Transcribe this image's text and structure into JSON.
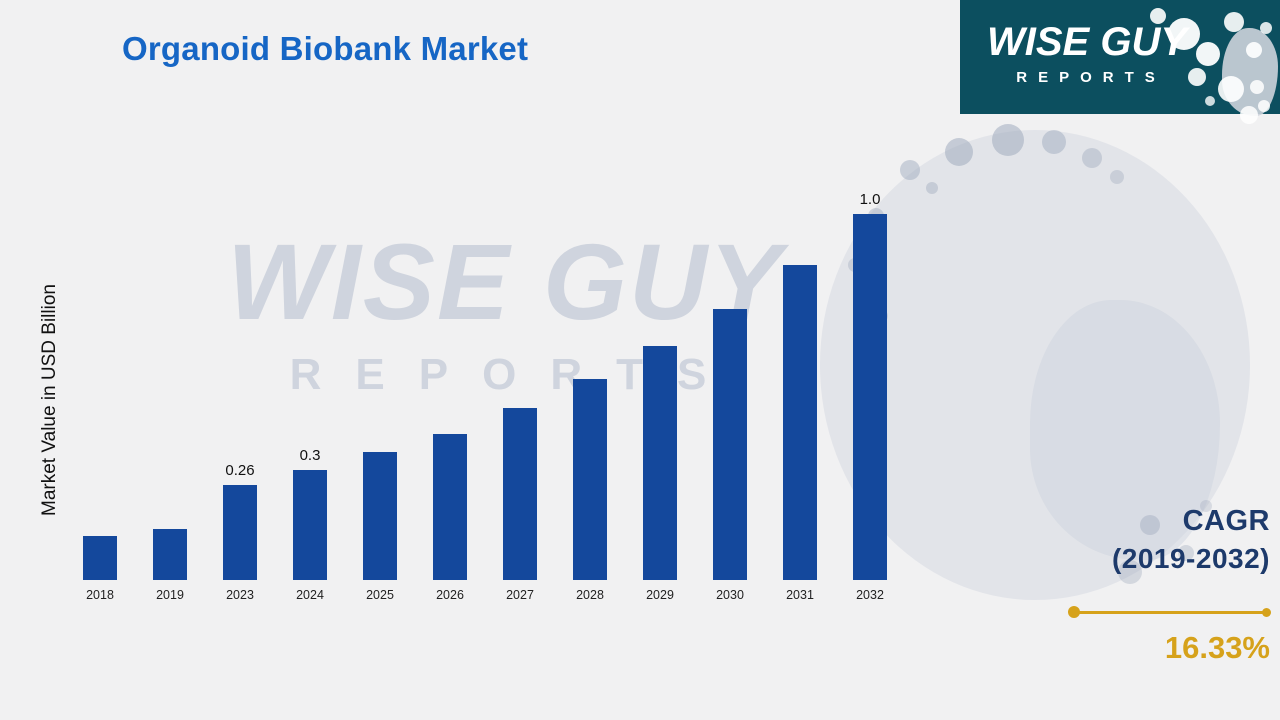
{
  "title": "Organoid Biobank Market",
  "y_axis_label": "Market Value in USD Billion",
  "logo": {
    "line1": "WISE GUY",
    "line2": "REPORTS"
  },
  "watermark": {
    "line1": "WISE GUY",
    "line2": "REPORTS"
  },
  "cagr": {
    "label": "CAGR",
    "range": "(2019-2032)",
    "value": "16.33%"
  },
  "colors": {
    "bar": "#14489c",
    "title": "#1666c5",
    "logo_background": "#0c4f5f",
    "cagr_text": "#1d3a6b",
    "accent_gold": "#d6a21b",
    "page_background": "#f1f1f2"
  },
  "chart_data": {
    "type": "bar",
    "title": "Organoid Biobank Market",
    "xlabel": "",
    "ylabel": "Market Value in USD Billion",
    "categories": [
      "2018",
      "2019",
      "2023",
      "2024",
      "2025",
      "2026",
      "2027",
      "2028",
      "2029",
      "2030",
      "2031",
      "2032"
    ],
    "values": [
      0.12,
      0.14,
      0.26,
      0.3,
      0.35,
      0.4,
      0.47,
      0.55,
      0.64,
      0.74,
      0.86,
      1.0
    ],
    "data_labels": {
      "2023": "0.26",
      "2024": "0.3",
      "2032": "1.0"
    },
    "unit": "USD Billion",
    "ylim": [
      0,
      1.1
    ],
    "grid": false,
    "legend": null,
    "bar_color": "#14489c"
  }
}
